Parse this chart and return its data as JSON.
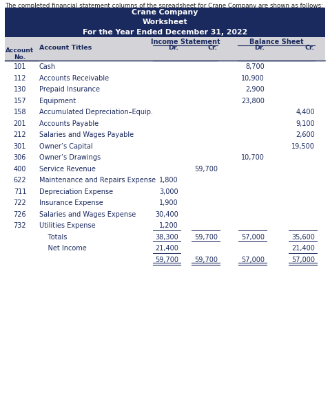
{
  "caption": "The completed financial statement columns of the spreadsheet for Crane Company are shown as follows:",
  "header_title": "Crane Company\nWorksheet\nFor the Year Ended December 31, 2022",
  "header_bg": "#1b2a5e",
  "header_text_color": "#ffffff",
  "subheader_bg": "#d4d4d8",
  "col_headers_2": [
    "Account\nNo.",
    "Account Titles",
    "Dr.",
    "Cr.",
    "Dr.",
    "Cr."
  ],
  "rows": [
    {
      "no": "101",
      "title": "Cash",
      "is_dr": "",
      "is_cr": "",
      "bs_dr": "8,700",
      "bs_cr": ""
    },
    {
      "no": "112",
      "title": "Accounts Receivable",
      "is_dr": "",
      "is_cr": "",
      "bs_dr": "10,900",
      "bs_cr": ""
    },
    {
      "no": "130",
      "title": "Prepaid Insurance",
      "is_dr": "",
      "is_cr": "",
      "bs_dr": "2,900",
      "bs_cr": ""
    },
    {
      "no": "157",
      "title": "Equipment",
      "is_dr": "",
      "is_cr": "",
      "bs_dr": "23,800",
      "bs_cr": ""
    },
    {
      "no": "158",
      "title": "Accumulated Depreciation–Equip.",
      "is_dr": "",
      "is_cr": "",
      "bs_dr": "",
      "bs_cr": "4,400"
    },
    {
      "no": "201",
      "title": "Accounts Payable",
      "is_dr": "",
      "is_cr": "",
      "bs_dr": "",
      "bs_cr": "9,100"
    },
    {
      "no": "212",
      "title": "Salaries and Wages Payable",
      "is_dr": "",
      "is_cr": "",
      "bs_dr": "",
      "bs_cr": "2,600"
    },
    {
      "no": "301",
      "title": "Owner’s Capital",
      "is_dr": "",
      "is_cr": "",
      "bs_dr": "",
      "bs_cr": "19,500"
    },
    {
      "no": "306",
      "title": "Owner’s Drawings",
      "is_dr": "",
      "is_cr": "",
      "bs_dr": "10,700",
      "bs_cr": ""
    },
    {
      "no": "400",
      "title": "Service Revenue",
      "is_dr": "",
      "is_cr": "59,700",
      "bs_dr": "",
      "bs_cr": ""
    },
    {
      "no": "622",
      "title": "Maintenance and Repairs Expense",
      "is_dr": "1,800",
      "is_cr": "",
      "bs_dr": "",
      "bs_cr": ""
    },
    {
      "no": "711",
      "title": "Depreciation Expense",
      "is_dr": "3,000",
      "is_cr": "",
      "bs_dr": "",
      "bs_cr": ""
    },
    {
      "no": "722",
      "title": "Insurance Expense",
      "is_dr": "1,900",
      "is_cr": "",
      "bs_dr": "",
      "bs_cr": ""
    },
    {
      "no": "726",
      "title": "Salaries and Wages Expense",
      "is_dr": "30,400",
      "is_cr": "",
      "bs_dr": "",
      "bs_cr": ""
    },
    {
      "no": "732",
      "title": "Utilities Expense",
      "is_dr": "1,200",
      "is_cr": "",
      "bs_dr": "",
      "bs_cr": "",
      "underline": true
    }
  ],
  "totals_row": {
    "label": "Totals",
    "is_dr": "38,300",
    "is_cr": "59,700",
    "bs_dr": "57,000",
    "bs_cr": "35,600"
  },
  "net_income_row": {
    "label": "Net Income",
    "is_dr": "21,400",
    "is_cr": "",
    "bs_dr": "",
    "bs_cr": "21,400"
  },
  "final_row": {
    "is_dr": "59,700",
    "is_cr": "59,700",
    "bs_dr": "57,000",
    "bs_cr": "57,000"
  },
  "text_color": "#1b2a5e",
  "font_size": 7.0
}
